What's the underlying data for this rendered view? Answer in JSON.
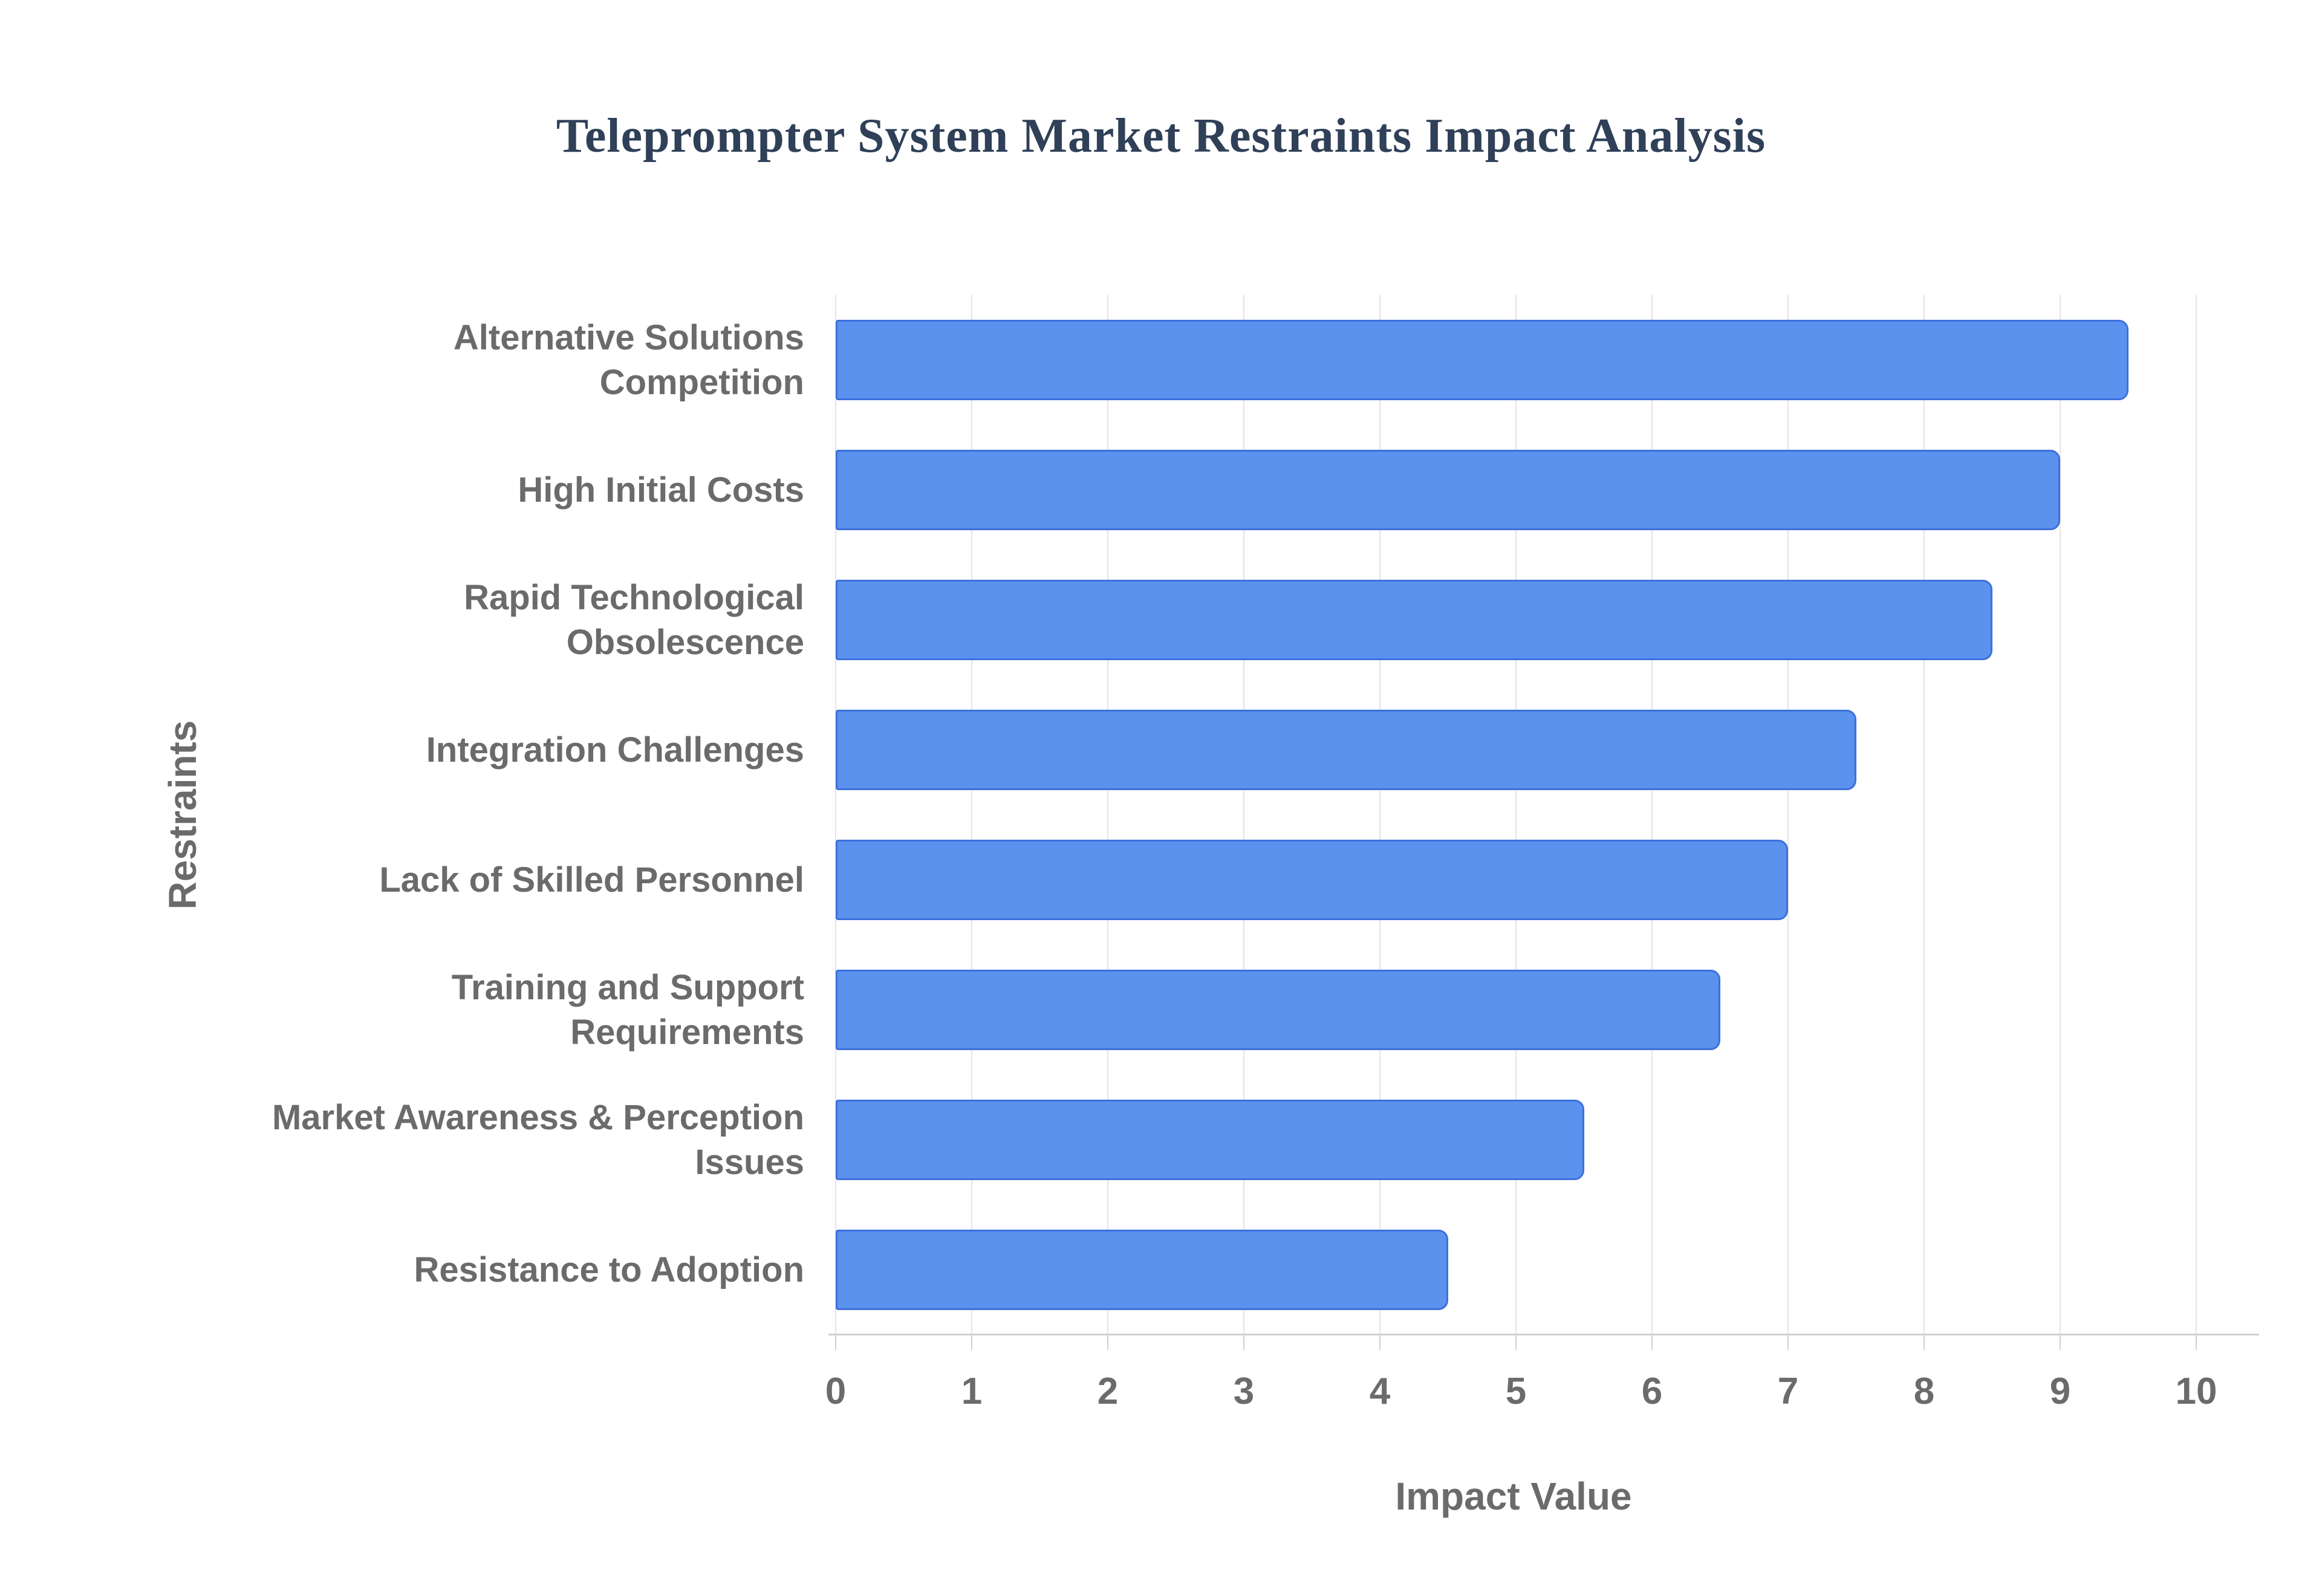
{
  "chart_data": {
    "type": "bar",
    "orientation": "horizontal",
    "title": "Teleprompter System Market Restraints Impact Analysis",
    "xlabel": "Impact Value",
    "ylabel": "Restraints",
    "categories": [
      "Alternative Solutions\nCompetition",
      "High Initial Costs",
      "Rapid Technological\nObsolescence",
      "Integration Challenges",
      "Lack of Skilled Personnel",
      "Training and Support\nRequirements",
      "Market Awareness & Perception\nIssues",
      "Resistance to Adoption"
    ],
    "values": [
      9.5,
      9,
      8.5,
      7.5,
      7,
      6.5,
      5.5,
      4.5
    ],
    "xlim": [
      0,
      10
    ],
    "xticks": [
      0,
      1,
      2,
      3,
      4,
      5,
      6,
      7,
      8,
      9,
      10
    ],
    "grid": true,
    "legend": "none",
    "colors": {
      "bar_fill": "#5A92EE",
      "bar_stroke": "#3D70DC",
      "gridline": "#E4E4E4",
      "axis_line": "#CFCFCF",
      "label": "#6B6B6B",
      "title": "#2F4058"
    }
  }
}
